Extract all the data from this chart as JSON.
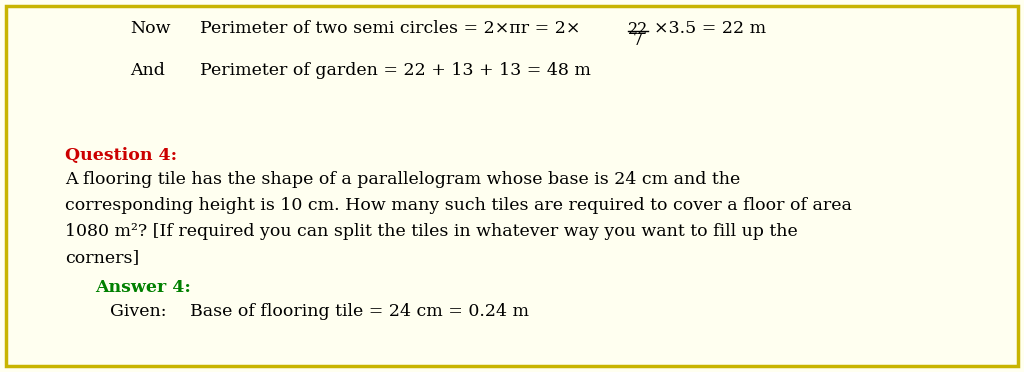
{
  "background_color": "#fffff0",
  "border_color": "#c8b400",
  "line1_label": "Now",
  "line1_text_before": "Perimeter of two semi circles = 2×πr = 2×",
  "line1_frac_num": "22",
  "line1_frac_den": "7",
  "line1_text_after": "×3.5 = 22 m",
  "line2_label": "And",
  "line2_text": "Perimeter of garden = 22 + 13 + 13 = 48 m",
  "question_label": "Question 4:",
  "question_line1": "A flooring tile has the shape of a parallelogram whose base is 24 cm and the",
  "question_line2": "corresponding height is 10 cm. How many such tiles are required to cover a floor of area",
  "question_line3": "1080 m²? [If required you can split the tiles in whatever way you want to fill up the",
  "question_line4": "corners]",
  "answer_label": "Answer 4:",
  "answer_given_key": "Given:",
  "answer_given_val": "Base of flooring tile = 24 cm = 0.24 m",
  "red_color": "#cc0000",
  "green_color": "#008000",
  "black_color": "#000000",
  "fs": 12.5
}
